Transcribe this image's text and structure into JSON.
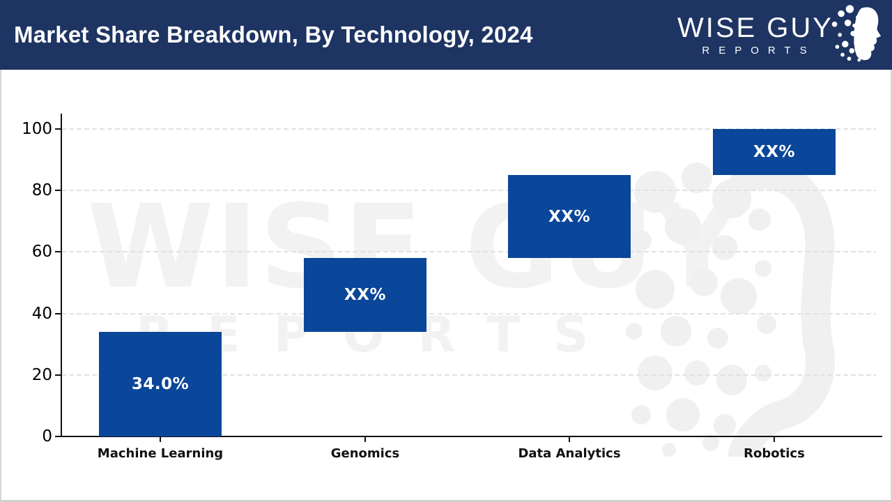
{
  "header": {
    "title": "Market Share Breakdown, By Technology, 2024",
    "logo": {
      "line1": "WISE GUY",
      "line2": "REPORTS"
    }
  },
  "watermark": {
    "line1": "WISE GUY",
    "line2": "REPORTS"
  },
  "colors": {
    "header_bg": "#1e3462",
    "bar_blue": "#0a4699",
    "bar_label": "#ffffff",
    "gridline": "#e1e1e1",
    "axis": "#111111",
    "watermark_gray": "#f2f2f2",
    "frame_border": "#d6d6d6"
  },
  "chart_data": {
    "type": "bar",
    "subtype": "waterfall-breakdown",
    "title": "Market Share Breakdown, By Technology, 2024",
    "categories": [
      "Machine Learning",
      "Genomics",
      "Data Analytics",
      "Robotics"
    ],
    "segments": [
      {
        "category": "Machine Learning",
        "start": 0,
        "end": 34,
        "label": "34.0%"
      },
      {
        "category": "Genomics",
        "start": 34,
        "end": 58,
        "label": "XX%"
      },
      {
        "category": "Data Analytics",
        "start": 58,
        "end": 85,
        "label": "XX%"
      },
      {
        "category": "Robotics",
        "start": 85,
        "end": 100,
        "label": "XX%"
      }
    ],
    "yticks": [
      0,
      20,
      40,
      60,
      80,
      100
    ],
    "ylim": [
      0,
      105
    ],
    "xlabel": "",
    "ylabel": "",
    "legend": "none",
    "grid": "horizontal-dashed",
    "bar_color": "#0a4699",
    "bar_label_color": "#ffffff"
  }
}
